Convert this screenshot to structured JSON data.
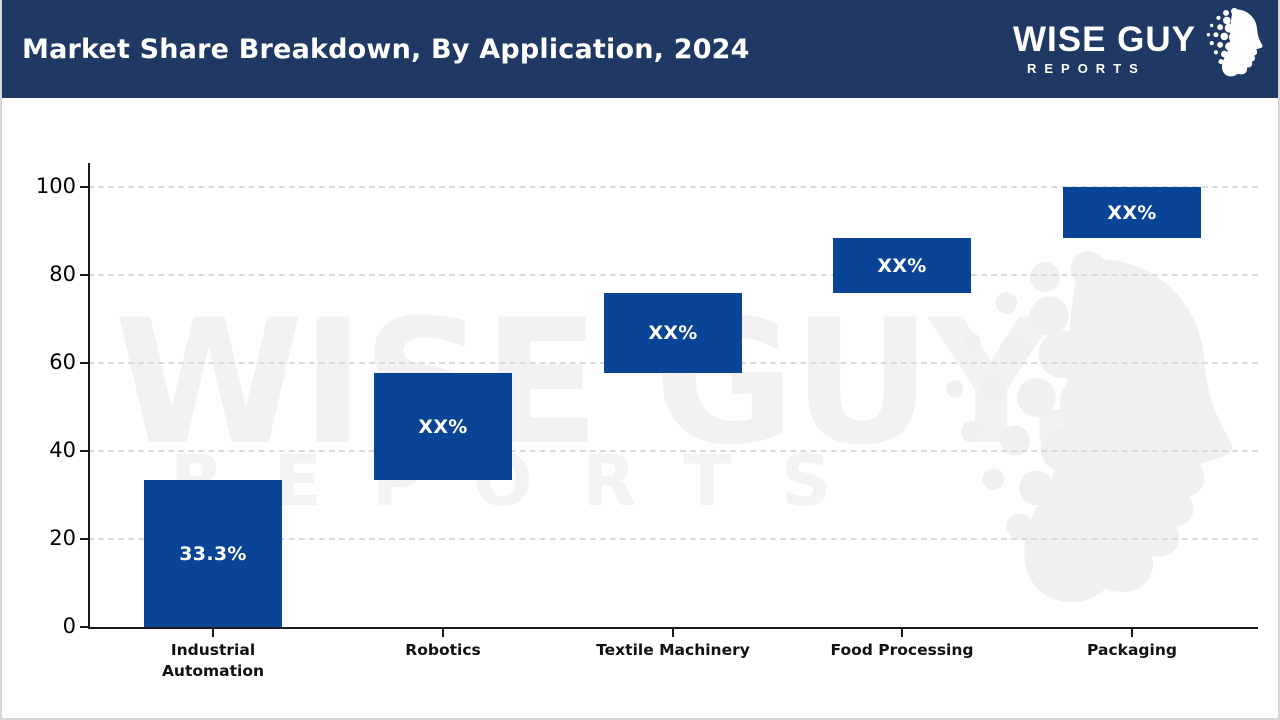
{
  "header": {
    "title": "Market Share Breakdown, By Application, 2024",
    "logo": {
      "name": "WISE GUY",
      "sub": "REPORTS",
      "head_icon": "dotted-face-profile"
    }
  },
  "watermark": {
    "text1": "WISE GUY.",
    "text2": "REPORTS",
    "head_icon": "dotted-face-profile"
  },
  "colors": {
    "header_bg": "#1f3864",
    "bar": "#0a4496",
    "bar_label": "#ffffff",
    "grid": "#d9d9d9",
    "axis": "#1a1a1a",
    "watermark": "#f2f2f2"
  },
  "chart_data": {
    "type": "bar",
    "subtype": "waterfall",
    "title": "Market Share Breakdown, By Application, 2024",
    "xlabel": "",
    "ylabel": "",
    "ylim": [
      0,
      100
    ],
    "yticks": [
      0,
      20,
      40,
      60,
      80,
      100
    ],
    "grid": "horizontal-dashed",
    "legend": "none",
    "categories": [
      "Industrial Automation",
      "Robotics",
      "Textile Machinery",
      "Food Processing",
      "Packaging"
    ],
    "segments": [
      {
        "category": "Industrial Automation",
        "category_lines": "Industrial\nAutomation",
        "start": 0,
        "end": 33.3,
        "label": "33.3%"
      },
      {
        "category": "Robotics",
        "category_lines": "Robotics",
        "start": 33.3,
        "end": 57.7,
        "label": "XX%"
      },
      {
        "category": "Textile Machinery",
        "category_lines": "Textile Machinery",
        "start": 57.7,
        "end": 76.0,
        "label": "XX%"
      },
      {
        "category": "Food Processing",
        "category_lines": "Food Processing",
        "start": 76.0,
        "end": 88.3,
        "label": "XX%"
      },
      {
        "category": "Packaging",
        "category_lines": "Packaging",
        "start": 88.3,
        "end": 100.0,
        "label": "XX%"
      }
    ]
  }
}
